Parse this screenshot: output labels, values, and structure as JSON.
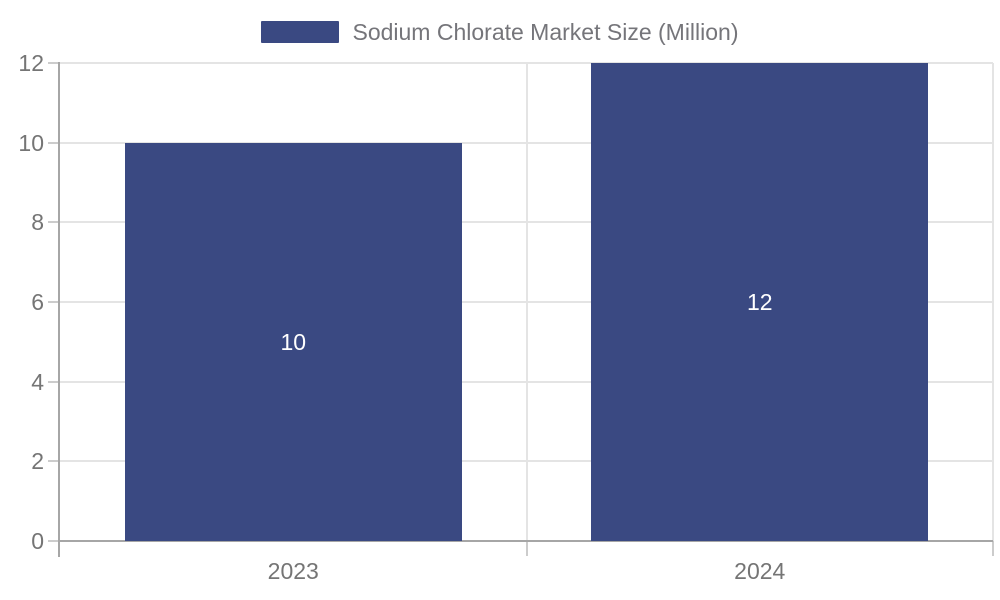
{
  "chart_data": {
    "type": "bar",
    "title": "",
    "legend": {
      "label": "Sodium Chlorate Market Size (Million)",
      "position": "top-center"
    },
    "categories": [
      "2023",
      "2024"
    ],
    "series": [
      {
        "name": "Sodium Chlorate Market Size (Million)",
        "values": [
          10,
          12
        ]
      }
    ],
    "data_labels": {
      "show": true,
      "position": "inside-center",
      "values": [
        "10",
        "12"
      ]
    },
    "xlabel": "",
    "ylabel": "",
    "yticks": [
      "0",
      "2",
      "4",
      "6",
      "8",
      "10",
      "12"
    ],
    "ylim": [
      0,
      12
    ],
    "grid": true
  },
  "style": {
    "bar_color": "#3A4982",
    "grid_color": "#E4E4E4",
    "axis_line_color": "#A6A6A6",
    "tick_color": "#CCCCCC",
    "axis_label_color": "#757575",
    "legend_text_color": "#75757A",
    "data_label_color": "#FFFFFF",
    "background": "#FFFFFF"
  }
}
